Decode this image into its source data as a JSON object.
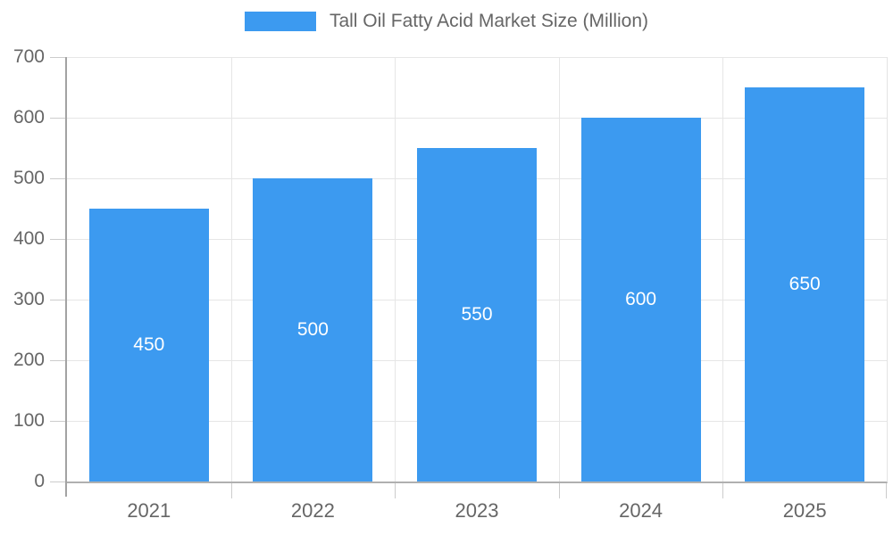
{
  "chart_data": {
    "type": "bar",
    "title": "Tall Oil Fatty Acid Market Size (Million)",
    "categories": [
      "2021",
      "2022",
      "2023",
      "2024",
      "2025"
    ],
    "values": [
      450,
      500,
      550,
      600,
      650
    ],
    "value_labels": [
      "450",
      "500",
      "550",
      "600",
      "650"
    ],
    "xlabel": "",
    "ylabel": "",
    "ylim": [
      0,
      700
    ],
    "yticks": [
      0,
      100,
      200,
      300,
      400,
      500,
      600,
      700
    ],
    "grid": true,
    "legend_position": "top",
    "colors": {
      "bar": "#3C9AF0",
      "value_label": "#ffffff",
      "axis_text": "#666666",
      "gridline": "#e6e6e6",
      "axis_line": "#a3a3a3",
      "baseline": "#b0b0b0"
    }
  }
}
